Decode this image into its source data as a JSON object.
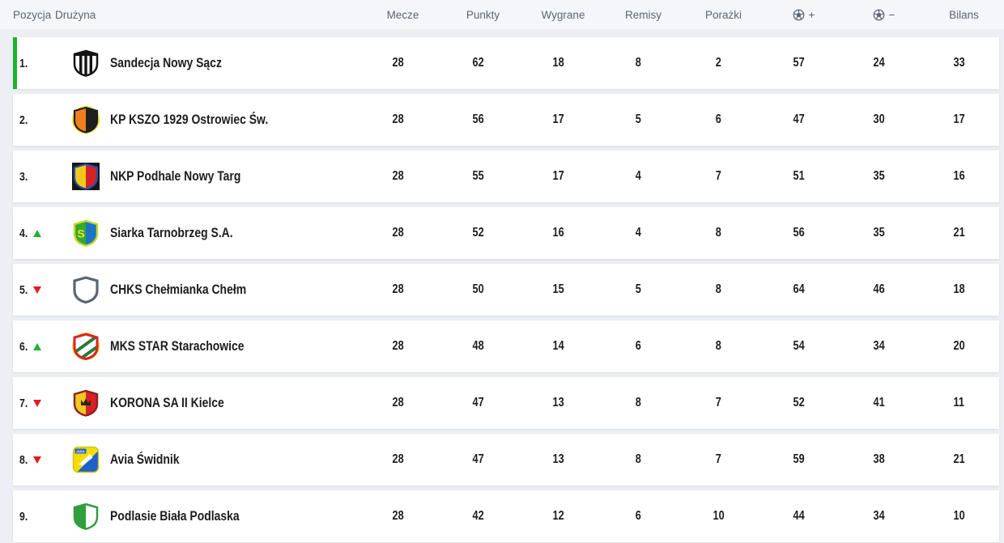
{
  "colors": {
    "page_bg": "#edeff5",
    "header_bg": "#f5f6fa",
    "header_text": "#5b6475",
    "text": "#1d1d1f",
    "leader_bar_green": "#1fb32e",
    "trend_up_green": "#1fb32e",
    "trend_down_red": "#e01d23",
    "card_bg": "#ffffff"
  },
  "table": {
    "headers": {
      "position": "Pozycja",
      "team": "Drużyna"
    },
    "stat_headers": [
      {
        "key": "matches",
        "label": "Mecze"
      },
      {
        "key": "points",
        "label": "Punkty"
      },
      {
        "key": "wins",
        "label": "Wygrane"
      },
      {
        "key": "draws",
        "label": "Remisy"
      },
      {
        "key": "losses",
        "label": "Porażki"
      },
      {
        "key": "goals-for",
        "label": "+",
        "icon": "soccer-ball-icon"
      },
      {
        "key": "goals-against",
        "label": "−",
        "icon": "soccer-ball-icon"
      },
      {
        "key": "balance",
        "label": "Bilans"
      }
    ]
  },
  "rows": [
    {
      "position": "1.",
      "trend": null,
      "highlight": true,
      "team": "Sandecja Nowy Sącz",
      "stats": [
        "28",
        "62",
        "18",
        "8",
        "2",
        "57",
        "24",
        "33"
      ],
      "logo": {
        "kind": "shield",
        "left": "#ffffff",
        "right": "#ffffff",
        "border": "#141414",
        "stripes": "#141414",
        "topBand": "#141414",
        "strokeWidth": 2.5
      }
    },
    {
      "position": "2.",
      "trend": null,
      "highlight": false,
      "team": "KP KSZO 1929 Ostrowiec Św.",
      "stats": [
        "28",
        "56",
        "17",
        "5",
        "6",
        "47",
        "30",
        "17"
      ],
      "logo": {
        "kind": "shield",
        "bg": "circle",
        "bgColor": "#f2df1d",
        "left": "#f08019",
        "right": "#1e1e1e",
        "border": "#1e1e1e",
        "strokeWidth": 2.2
      }
    },
    {
      "position": "3.",
      "trend": null,
      "highlight": false,
      "team": "NKP Podhale Nowy Targ",
      "stats": [
        "28",
        "55",
        "17",
        "4",
        "7",
        "51",
        "35",
        "16"
      ],
      "logo": {
        "kind": "shield",
        "bg": "square",
        "bgColor": "#161616",
        "left": "#f3c81c",
        "right": "#d42229",
        "border": "#2450a8",
        "strokeWidth": 2.2
      }
    },
    {
      "position": "4.",
      "trend": "up",
      "highlight": false,
      "team": "Siarka Tarnobrzeg S.A.",
      "stats": [
        "28",
        "52",
        "16",
        "4",
        "8",
        "56",
        "35",
        "21"
      ],
      "logo": {
        "kind": "shield",
        "left": "#33a935",
        "right": "#1d74c4",
        "border": "#c6db20",
        "mark": "S",
        "markColor": "#f7e11c",
        "markX": 12,
        "markSize": 14,
        "strokeWidth": 2.4
      }
    },
    {
      "position": "5.",
      "trend": "down",
      "highlight": false,
      "team": "CHKS Chełmianka Chełm",
      "stats": [
        "28",
        "50",
        "15",
        "5",
        "8",
        "64",
        "46",
        "18"
      ],
      "logo": {
        "kind": "shield",
        "left": "#ffffff",
        "right": "#ffffff",
        "border": "#5b6472",
        "strokeWidth": 3.2
      }
    },
    {
      "position": "6.",
      "trend": "up",
      "highlight": false,
      "team": "MKS STAR Starachowice",
      "stats": [
        "28",
        "48",
        "14",
        "6",
        "8",
        "54",
        "34",
        "20"
      ],
      "logo": {
        "kind": "shield",
        "bg": "circle",
        "bgColor": "#f0d81c",
        "left": "#ffffff",
        "right": "#ffffff",
        "border": "#d8232a",
        "diagonals": "#2c7a35",
        "strokeWidth": 3
      }
    },
    {
      "position": "7.",
      "trend": "down",
      "highlight": false,
      "team": "KORONA SA II Kielce",
      "stats": [
        "28",
        "47",
        "13",
        "8",
        "7",
        "52",
        "41",
        "11"
      ],
      "logo": {
        "kind": "shield",
        "left": "#f0c81e",
        "right": "#d42229",
        "border": "#921d20",
        "crown": "#31220f",
        "strokeWidth": 2.4
      }
    },
    {
      "position": "8.",
      "trend": "down",
      "highlight": false,
      "team": "Avia Świdnik",
      "stats": [
        "28",
        "47",
        "13",
        "8",
        "7",
        "59",
        "38",
        "21"
      ],
      "logo": {
        "kind": "avia",
        "yellow": "#f5dc00",
        "blue": "#1d62c8",
        "bird": "#ffffff",
        "label": "AVIA"
      }
    },
    {
      "position": "9.",
      "trend": null,
      "highlight": false,
      "team": "Podlasie Biała Podlaska",
      "stats": [
        "28",
        "42",
        "12",
        "6",
        "10",
        "44",
        "34",
        "10"
      ],
      "logo": {
        "kind": "shield",
        "left": "#2f9e3c",
        "right": "#ffffff",
        "border": "#2f9e3c",
        "strokeWidth": 2.5
      }
    }
  ]
}
